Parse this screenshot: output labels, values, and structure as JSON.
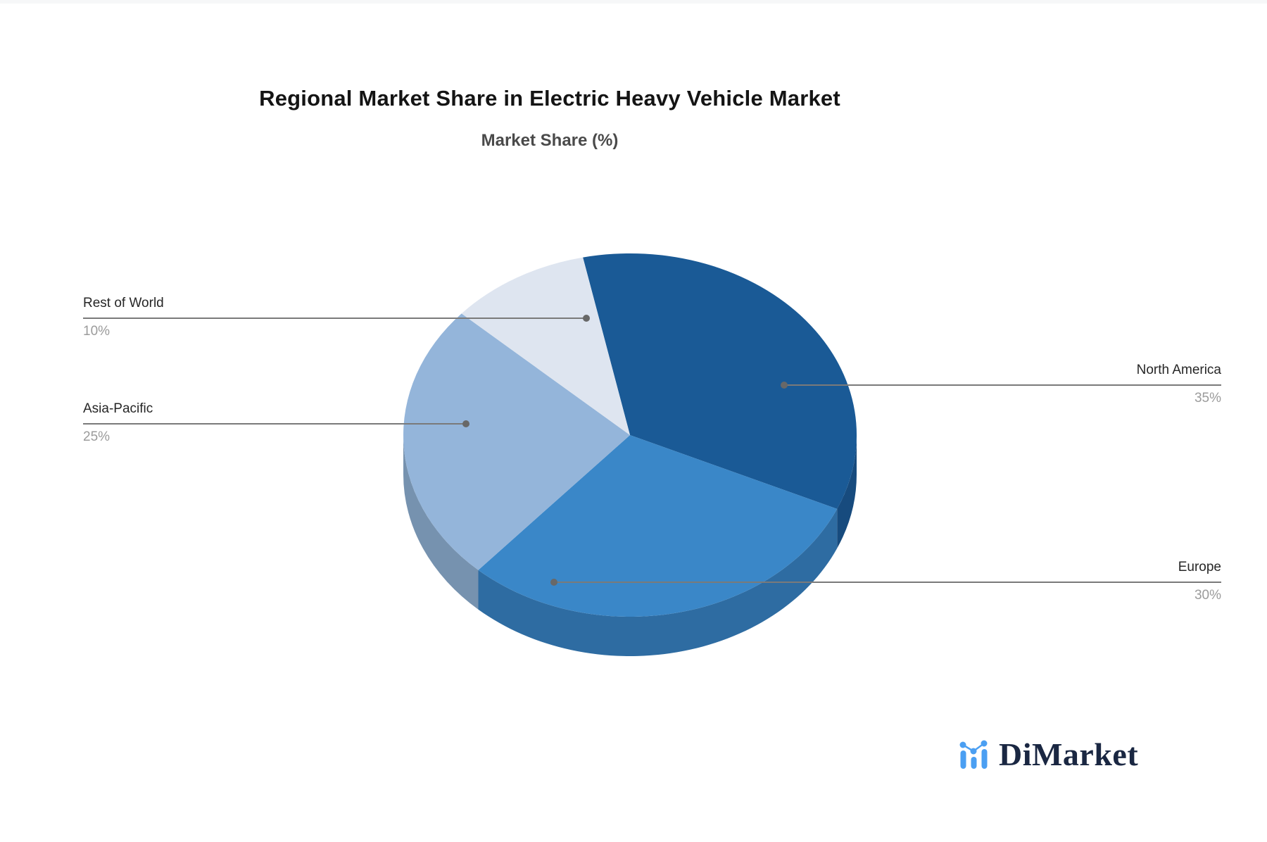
{
  "page": {
    "background": "#ffffff",
    "topstrip_color": "#f6f7f8"
  },
  "chart_data": {
    "type": "pie",
    "style": "3d",
    "title": "Regional Market Share in Electric Heavy Vehicle Market",
    "subtitle": "Market Share (%)",
    "unit": "%",
    "direction": "clockwise",
    "start_angle_deg": -12,
    "legend_position": "callout-labels",
    "categories": [
      "North America",
      "Europe",
      "Asia-Pacific",
      "Rest of World"
    ],
    "values": [
      35,
      30,
      25,
      10
    ],
    "slices": [
      {
        "label": "North America",
        "value": 35,
        "pct_label": "35%",
        "color": "#1a5a96",
        "side_color": "#174b7e"
      },
      {
        "label": "Europe",
        "value": 30,
        "pct_label": "30%",
        "color": "#3a87c8",
        "side_color": "#2e6ca2"
      },
      {
        "label": "Asia-Pacific",
        "value": 25,
        "pct_label": "25%",
        "color": "#94b5da",
        "side_color": "#7692af"
      },
      {
        "label": "Rest of World",
        "value": 10,
        "pct_label": "10%",
        "color": "#dee5f0",
        "side_color": "#b9c3d4"
      }
    ],
    "leader_line_color": "#7a7a7a",
    "leader_dot_color": "#686868",
    "label_text_color": "#262626",
    "pct_text_color": "#9b9b9b"
  },
  "branding": {
    "name": "DiMarket",
    "icon": "bar-line-chart-logo-icon",
    "icon_color": "#4b9ff2",
    "text_color": "#1a2742"
  }
}
